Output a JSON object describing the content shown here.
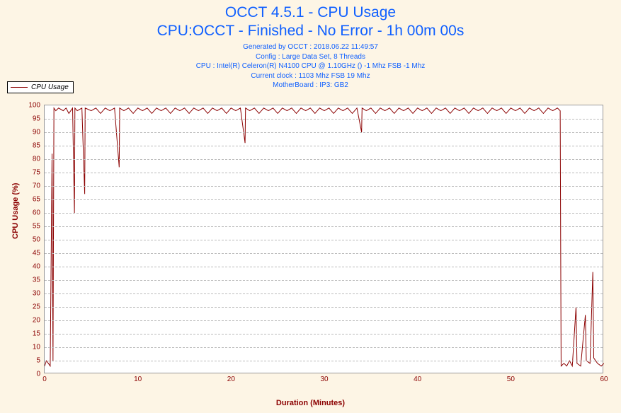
{
  "header": {
    "title": "OCCT 4.5.1 - CPU Usage",
    "subtitle": "CPU:OCCT - Finished - No Error - 1h 00m 00s",
    "generated": "Generated by OCCT : 2018.06.22 11:49:57",
    "config": "Config : Large Data Set, 8 Threads",
    "cpu": "CPU : Intel(R) Celeron(R) N4100 CPU @ 1.10GHz () -1 Mhz FSB -1 Mhz",
    "clock": "Current clock : 1103 Mhz FSB 19 Mhz",
    "mobo": "MotherBoard : IP3: GB2"
  },
  "legend": {
    "label": "CPU Usage"
  },
  "chart": {
    "type": "line",
    "xlabel": "Duration (Minutes)",
    "ylabel": "CPU Usage (%)",
    "xlim": [
      0,
      60
    ],
    "ylim": [
      0,
      100
    ],
    "xtick_step": 10,
    "ytick_step": 5,
    "background_color": "#ffffff",
    "page_background": "#fdf5e5",
    "grid_color": "#bbbbbb",
    "axis_color": "#999999",
    "line_color": "#8b0000",
    "label_color": "#8b0000",
    "title_color": "#1060ff",
    "title_fontsize": 21,
    "meta_fontsize": 10,
    "tick_fontsize": 10,
    "label_fontsize": 11,
    "line_width": 1,
    "series": [
      {
        "name": "CPU Usage",
        "color": "#8b0000",
        "data": [
          [
            0,
            3
          ],
          [
            0.2,
            5
          ],
          [
            0.4,
            4
          ],
          [
            0.6,
            3
          ],
          [
            0.8,
            82
          ],
          [
            0.9,
            5
          ],
          [
            1,
            99
          ],
          [
            1.2,
            98
          ],
          [
            1.5,
            99
          ],
          [
            2,
            98
          ],
          [
            2.3,
            99
          ],
          [
            2.6,
            97
          ],
          [
            3,
            99
          ],
          [
            3.2,
            60
          ],
          [
            3.25,
            99
          ],
          [
            3.5,
            98
          ],
          [
            4,
            99
          ],
          [
            4.3,
            67
          ],
          [
            4.35,
            99
          ],
          [
            5,
            98
          ],
          [
            5.5,
            99
          ],
          [
            6,
            97
          ],
          [
            6.5,
            99
          ],
          [
            7,
            98
          ],
          [
            7.5,
            99
          ],
          [
            8,
            77
          ],
          [
            8.05,
            99
          ],
          [
            8.5,
            98
          ],
          [
            9,
            99
          ],
          [
            9.5,
            97
          ],
          [
            10,
            99
          ],
          [
            10.5,
            98
          ],
          [
            11,
            99
          ],
          [
            11.5,
            97
          ],
          [
            12,
            99
          ],
          [
            12.5,
            98
          ],
          [
            13,
            99
          ],
          [
            13.5,
            97
          ],
          [
            14,
            99
          ],
          [
            14.5,
            98
          ],
          [
            15,
            99
          ],
          [
            15.5,
            97
          ],
          [
            16,
            99
          ],
          [
            16.5,
            98
          ],
          [
            17,
            99
          ],
          [
            17.5,
            97
          ],
          [
            18,
            99
          ],
          [
            18.5,
            98
          ],
          [
            19,
            99
          ],
          [
            19.5,
            97
          ],
          [
            20,
            99
          ],
          [
            20.5,
            98
          ],
          [
            21,
            99
          ],
          [
            21.5,
            86
          ],
          [
            21.55,
            99
          ],
          [
            22,
            98
          ],
          [
            22.5,
            99
          ],
          [
            23,
            97
          ],
          [
            23.5,
            99
          ],
          [
            24,
            98
          ],
          [
            24.5,
            99
          ],
          [
            25,
            97
          ],
          [
            25.5,
            99
          ],
          [
            26,
            98
          ],
          [
            26.5,
            99
          ],
          [
            27,
            97
          ],
          [
            27.5,
            99
          ],
          [
            28,
            98
          ],
          [
            28.5,
            99
          ],
          [
            29,
            97
          ],
          [
            29.5,
            99
          ],
          [
            30,
            98
          ],
          [
            30.5,
            99
          ],
          [
            31,
            97
          ],
          [
            31.5,
            99
          ],
          [
            32,
            98
          ],
          [
            32.5,
            99
          ],
          [
            33,
            97
          ],
          [
            33.5,
            99
          ],
          [
            34,
            90
          ],
          [
            34.05,
            99
          ],
          [
            34.5,
            98
          ],
          [
            35,
            99
          ],
          [
            35.5,
            97
          ],
          [
            36,
            99
          ],
          [
            36.5,
            98
          ],
          [
            37,
            99
          ],
          [
            37.5,
            97
          ],
          [
            38,
            99
          ],
          [
            38.5,
            98
          ],
          [
            39,
            99
          ],
          [
            39.5,
            97
          ],
          [
            40,
            99
          ],
          [
            40.5,
            98
          ],
          [
            41,
            99
          ],
          [
            41.5,
            97
          ],
          [
            42,
            99
          ],
          [
            42.5,
            98
          ],
          [
            43,
            99
          ],
          [
            43.5,
            97
          ],
          [
            44,
            99
          ],
          [
            44.5,
            98
          ],
          [
            45,
            99
          ],
          [
            45.5,
            97
          ],
          [
            46,
            99
          ],
          [
            46.5,
            98
          ],
          [
            47,
            99
          ],
          [
            47.5,
            97
          ],
          [
            48,
            99
          ],
          [
            48.5,
            98
          ],
          [
            49,
            99
          ],
          [
            49.5,
            97
          ],
          [
            50,
            99
          ],
          [
            50.5,
            98
          ],
          [
            51,
            99
          ],
          [
            51.5,
            97
          ],
          [
            52,
            99
          ],
          [
            52.5,
            98
          ],
          [
            53,
            99
          ],
          [
            53.5,
            97
          ],
          [
            54,
            99
          ],
          [
            54.5,
            98
          ],
          [
            55,
            99
          ],
          [
            55.3,
            98
          ],
          [
            55.4,
            3
          ],
          [
            55.7,
            4
          ],
          [
            56,
            3
          ],
          [
            56.3,
            5
          ],
          [
            56.6,
            3
          ],
          [
            57,
            25
          ],
          [
            57.1,
            4
          ],
          [
            57.5,
            3
          ],
          [
            58,
            22
          ],
          [
            58.1,
            5
          ],
          [
            58.5,
            4
          ],
          [
            58.8,
            38
          ],
          [
            58.9,
            6
          ],
          [
            59.3,
            4
          ],
          [
            59.7,
            3
          ],
          [
            60,
            4
          ]
        ]
      }
    ]
  }
}
